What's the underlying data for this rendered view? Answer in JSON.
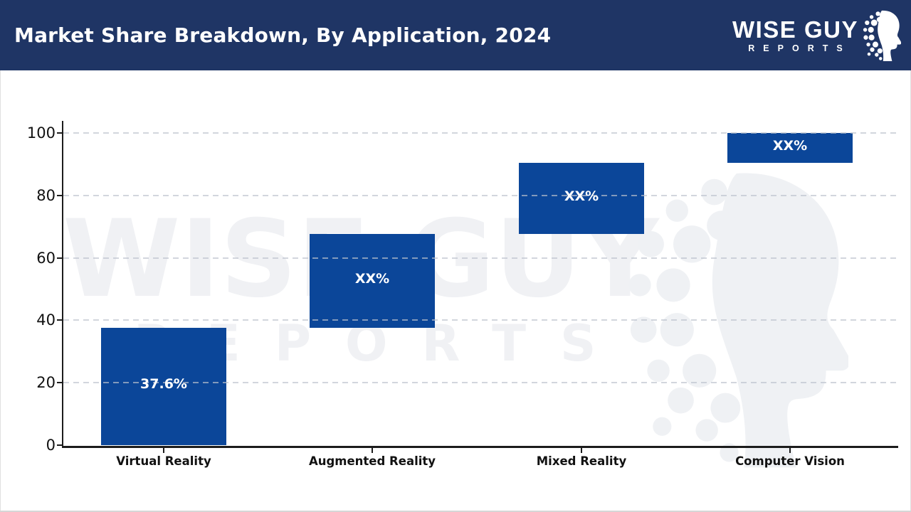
{
  "header": {
    "title": "Market Share Breakdown, By Application, 2024",
    "bg_color": "#1f3565",
    "logo": {
      "wordmark": "WISE GUY",
      "subtext": "REPORTS"
    }
  },
  "watermark": {
    "line1": "WISE GUY",
    "line2": "REPORTS"
  },
  "chart_data": {
    "type": "bar",
    "subtype": "waterfall",
    "title": "Market Share Breakdown, By Application, 2024",
    "categories": [
      "Virtual Reality",
      "Augmented Reality",
      "Mixed Reality",
      "Computer Vision"
    ],
    "segments": [
      {
        "category": "Virtual Reality",
        "start": 0,
        "end": 37.6,
        "label": "37.6%"
      },
      {
        "category": "Augmented Reality",
        "start": 37.6,
        "end": 67.6,
        "label": "XX%"
      },
      {
        "category": "Mixed Reality",
        "start": 67.6,
        "end": 90.4,
        "label": "XX%"
      },
      {
        "category": "Computer Vision",
        "start": 90.4,
        "end": 100,
        "label": "XX%"
      }
    ],
    "yticks": [
      0,
      20,
      40,
      60,
      80,
      100
    ],
    "ylim": [
      0,
      104
    ],
    "xlabel": "",
    "ylabel": "",
    "grid": "horizontal-dashed",
    "legend": "none",
    "bar_color": "#0b4699",
    "value_label_color": "#ffffff",
    "axis_color": "#1c1c1c"
  }
}
